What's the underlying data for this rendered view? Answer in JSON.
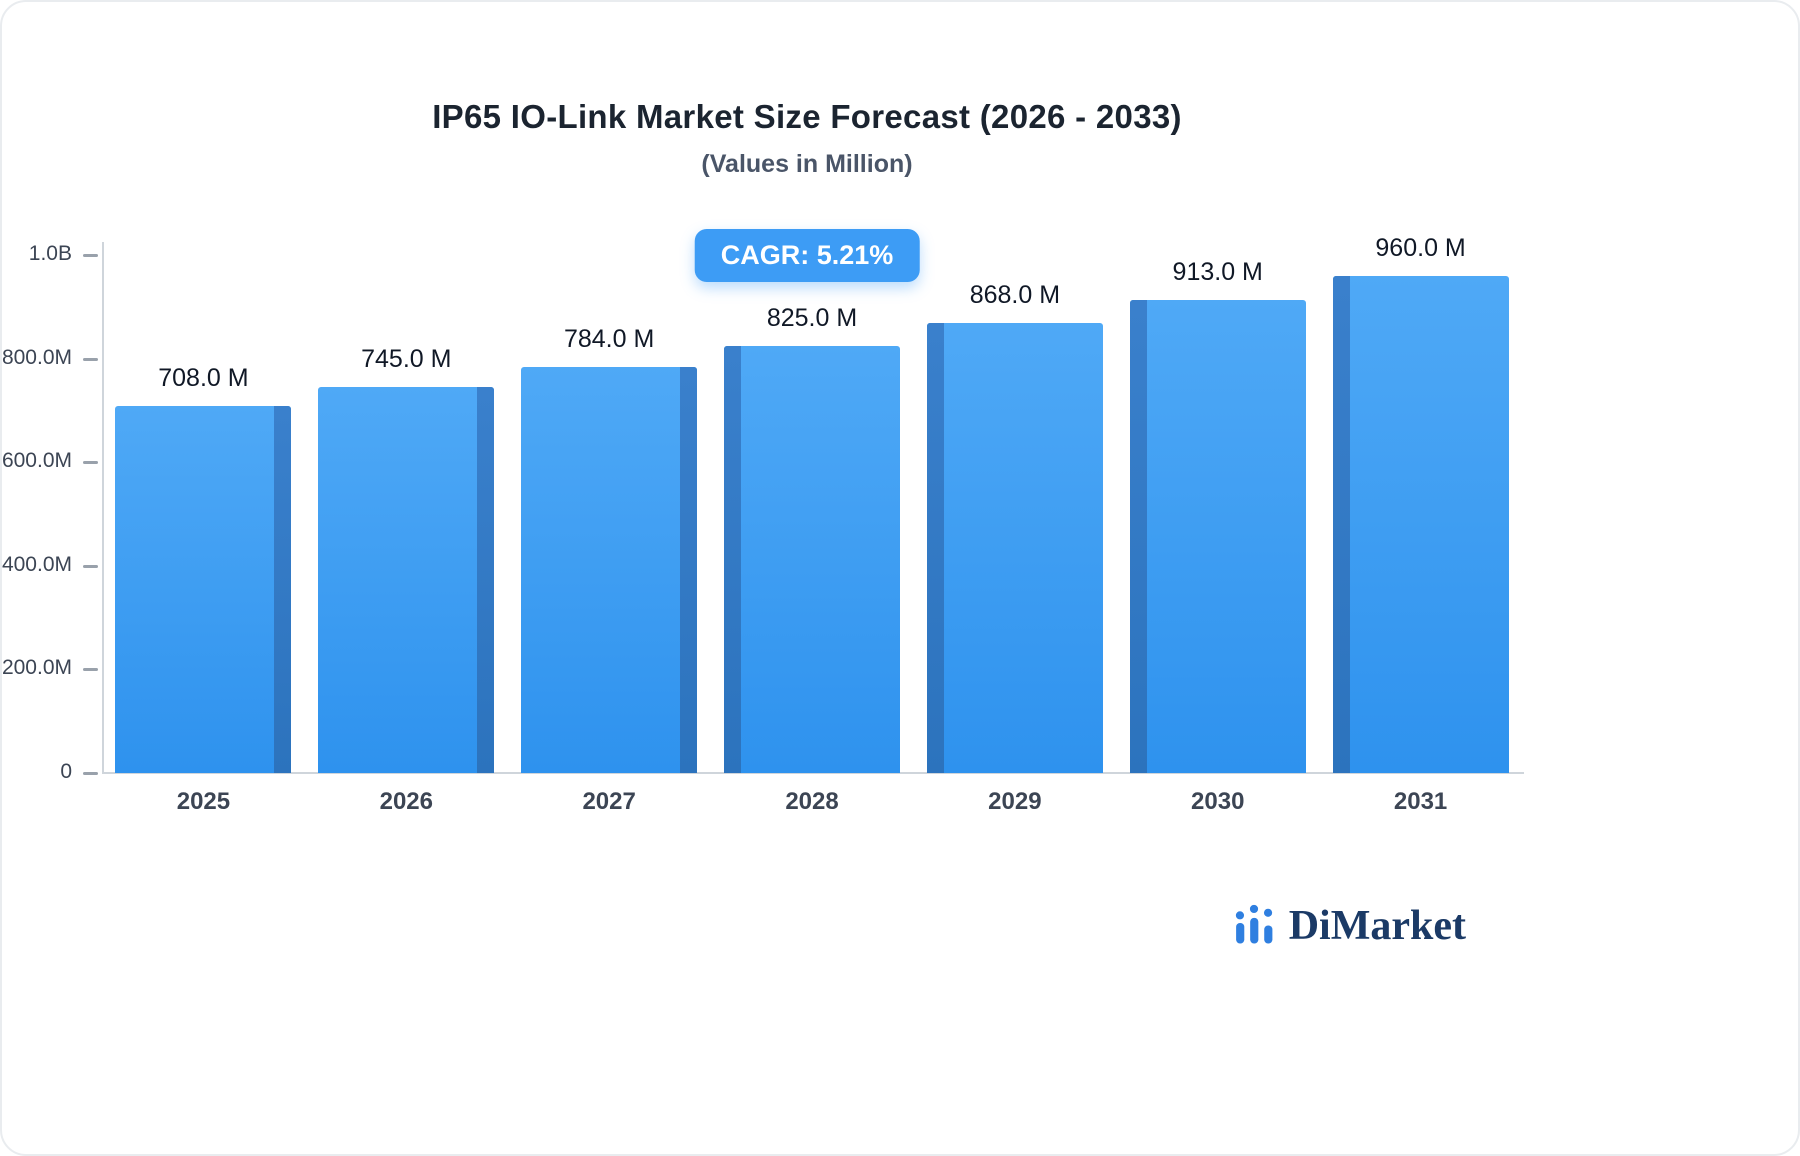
{
  "header": {
    "title": "IP65 IO-Link Market Size Forecast (2026 - 2033)",
    "subtitle": "(Values in Million)"
  },
  "badge": {
    "label": "CAGR: 5.21%"
  },
  "logo": {
    "text": "DiMarket"
  },
  "chart_data": {
    "type": "bar",
    "title": "IP65 IO-Link Market Size Forecast (2026 - 2033)",
    "subtitle": "(Values in Million)",
    "categories": [
      "2025",
      "2026",
      "2027",
      "2028",
      "2029",
      "2030",
      "2031"
    ],
    "values": [
      708,
      745,
      784,
      825,
      868,
      913,
      960
    ],
    "value_labels": [
      "708.0 M",
      "745.0 M",
      "784.0 M",
      "825.0 M",
      "868.0 M",
      "913.0 M",
      "960.0 M"
    ],
    "unit": "Million",
    "xlabel": "",
    "ylabel": "",
    "ylim": [
      0,
      1000
    ],
    "grid": false,
    "legend": "none",
    "yticks": [
      {
        "value": 1000,
        "label": "1.0B"
      },
      {
        "value": 800,
        "label": "800.0M"
      },
      {
        "value": 600,
        "label": "600.0M"
      },
      {
        "value": 400,
        "label": "400.0M"
      },
      {
        "value": 200,
        "label": "200.0M"
      },
      {
        "value": 0,
        "label": "0"
      }
    ],
    "colors": {
      "bar_top": "#4FA9F6",
      "bar_bottom": "#2E92EE",
      "bar_side": "#2C73BD",
      "badge_bg": "#3D9CF5",
      "title_color": "#1B2430",
      "subtitle_color": "#4A5568",
      "axis_color": "#3C4554",
      "value_color": "#101826",
      "logo_color": "#1B3A66",
      "axis_line": "#CFD5DB"
    }
  }
}
